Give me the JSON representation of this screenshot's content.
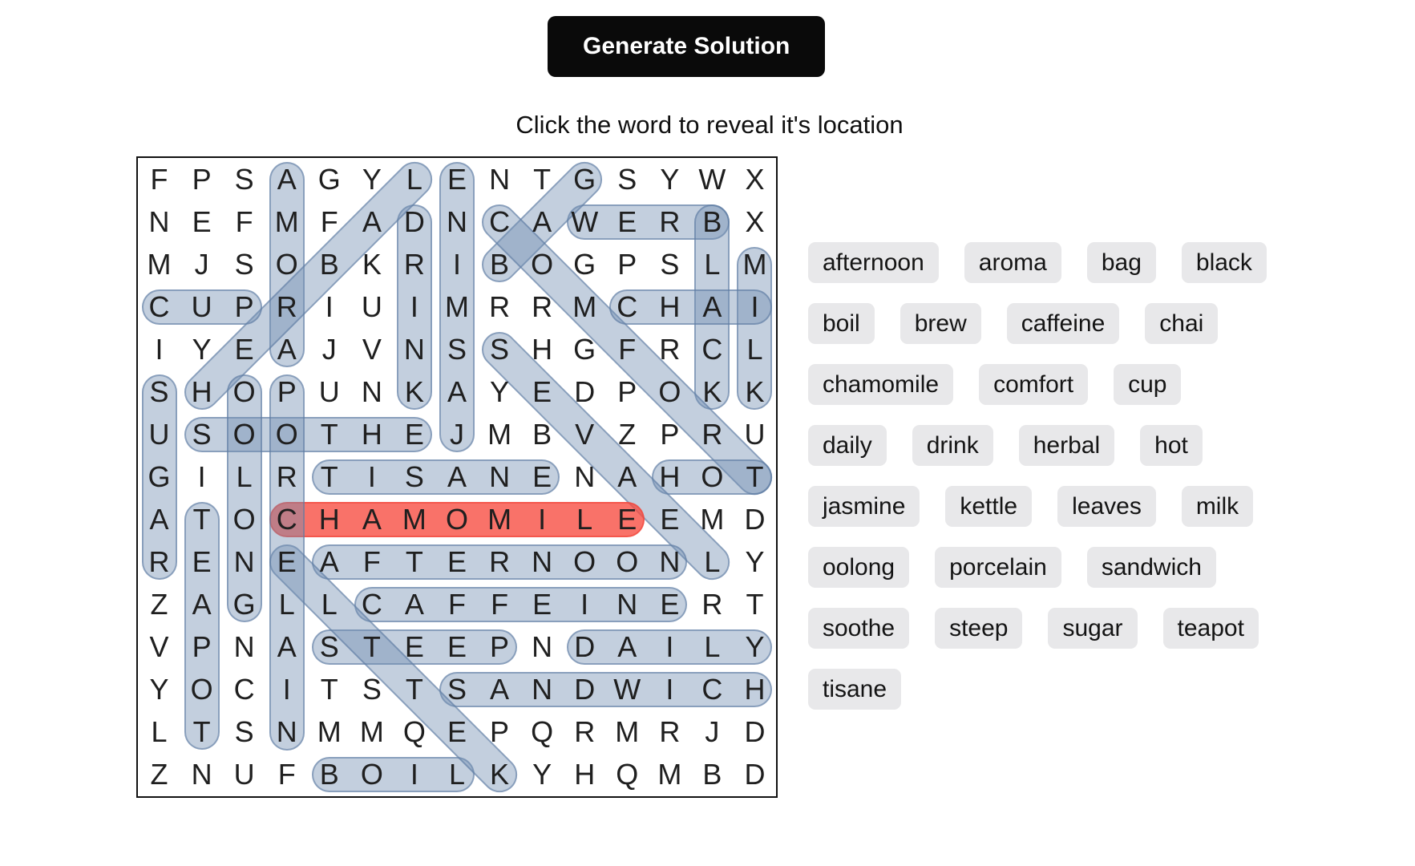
{
  "header": {
    "generate_button_label": "Generate Solution",
    "instruction": "Click the word to reveal it's location"
  },
  "grid": {
    "size": 15,
    "rows": [
      "FPSAGYLENTGSYWX",
      "NEFMFADNCAWERBX",
      "MJSOBKRIBOGPSLM",
      "CUPRIUIMRRMCHAI",
      "IYEAJVNSSHGFRCL",
      "SHOPUNKAYEDPOKK",
      "USOOTHEJMBVZPRU",
      "GILRTISANENAHOT",
      "ATOCHAMOMILEEMD",
      "RENEAFTERNOONLY",
      "ZAGLLCAFFEINERT",
      "VPNASTEEPNDAILY",
      "YOCITSTSANDWICH",
      "LTSNMMQEPQRMRJD",
      "ZNUFBOILKYHQMBD"
    ]
  },
  "highlights": [
    {
      "word": "aroma",
      "row": 1,
      "col": 4,
      "dir": "v",
      "len": 5,
      "color": "blue"
    },
    {
      "word": "jasmine",
      "row": 1,
      "col": 8,
      "dir": "v",
      "len": 7,
      "color": "blue"
    },
    {
      "word": "drink",
      "row": 2,
      "col": 7,
      "dir": "v",
      "len": 5,
      "color": "blue"
    },
    {
      "word": "brew",
      "row": 2,
      "col": 11,
      "dir": "h",
      "len": 4,
      "color": "blue"
    },
    {
      "word": "black",
      "row": 2,
      "col": 14,
      "dir": "v",
      "len": 5,
      "color": "blue"
    },
    {
      "word": "milk",
      "row": 3,
      "col": 15,
      "dir": "v",
      "len": 4,
      "color": "blue"
    },
    {
      "word": "herbal",
      "row": 6,
      "col": 2,
      "dir": "ur",
      "len": 6,
      "color": "blue"
    },
    {
      "word": "bag",
      "row": 3,
      "col": 9,
      "dir": "ur",
      "len": 3,
      "color": "blue"
    },
    {
      "word": "comfort",
      "row": 2,
      "col": 9,
      "dir": "dr",
      "len": 7,
      "color": "blue"
    },
    {
      "word": "cup",
      "row": 4,
      "col": 1,
      "dir": "h",
      "len": 3,
      "color": "blue"
    },
    {
      "word": "chai",
      "row": 4,
      "col": 12,
      "dir": "h",
      "len": 4,
      "color": "blue"
    },
    {
      "word": "sugar",
      "row": 6,
      "col": 1,
      "dir": "v",
      "len": 5,
      "color": "blue"
    },
    {
      "word": "soothe",
      "row": 7,
      "col": 2,
      "dir": "h",
      "len": 6,
      "color": "blue"
    },
    {
      "word": "tisane",
      "row": 8,
      "col": 5,
      "dir": "h",
      "len": 6,
      "color": "blue"
    },
    {
      "word": "hot",
      "row": 8,
      "col": 13,
      "dir": "h",
      "len": 3,
      "color": "blue"
    },
    {
      "word": "leaves",
      "row": 5,
      "col": 9,
      "dir": "dr",
      "len": 6,
      "color": "blue"
    },
    {
      "word": "chamomile",
      "row": 9,
      "col": 4,
      "dir": "h",
      "len": 9,
      "color": "red"
    },
    {
      "word": "afternoon",
      "row": 10,
      "col": 5,
      "dir": "h",
      "len": 9,
      "color": "blue"
    },
    {
      "word": "caffeine",
      "row": 11,
      "col": 6,
      "dir": "h",
      "len": 8,
      "color": "blue"
    },
    {
      "word": "steep",
      "row": 12,
      "col": 5,
      "dir": "h",
      "len": 5,
      "color": "blue"
    },
    {
      "word": "daily",
      "row": 12,
      "col": 11,
      "dir": "h",
      "len": 5,
      "color": "blue"
    },
    {
      "word": "sandwich",
      "row": 13,
      "col": 8,
      "dir": "h",
      "len": 8,
      "color": "blue"
    },
    {
      "word": "boil",
      "row": 15,
      "col": 5,
      "dir": "h",
      "len": 4,
      "color": "blue"
    },
    {
      "word": "kettle",
      "row": 10,
      "col": 4,
      "dir": "dr",
      "len": 6,
      "color": "blue"
    },
    {
      "word": "teapot",
      "row": 9,
      "col": 2,
      "dir": "v",
      "len": 6,
      "color": "blue"
    },
    {
      "word": "oolong",
      "row": 6,
      "col": 3,
      "dir": "v",
      "len": 6,
      "color": "blue"
    },
    {
      "word": "porcelain",
      "row": 6,
      "col": 4,
      "dir": "v",
      "len": 9,
      "color": "blue"
    }
  ],
  "words": {
    "rows": [
      [
        "afternoon",
        "aroma",
        "bag",
        "black"
      ],
      [
        "boil",
        "brew",
        "caffeine",
        "chai"
      ],
      [
        "chamomile",
        "comfort",
        "cup"
      ],
      [
        "daily",
        "drink",
        "herbal",
        "hot"
      ],
      [
        "jasmine",
        "kettle",
        "leaves",
        "milk"
      ],
      [
        "oolong",
        "porcelain",
        "sandwich"
      ],
      [
        "soothe",
        "steep",
        "sugar",
        "teapot"
      ],
      [
        "tisane"
      ]
    ]
  },
  "colors": {
    "button_bg": "#0a0a0a",
    "button_text": "#ffffff",
    "chip_bg": "#e8e8ea",
    "chip_text": "#141414",
    "letter_color": "#1f1f1f",
    "grid_border": "#111111",
    "highlight_blue_fill": "rgba(112,140,177,0.42)",
    "highlight_blue_border": "rgba(90,120,160,0.55)",
    "highlight_red_fill": "rgba(247,74,63,0.78)",
    "highlight_red_border": "rgba(240,60,50,0.5)"
  }
}
